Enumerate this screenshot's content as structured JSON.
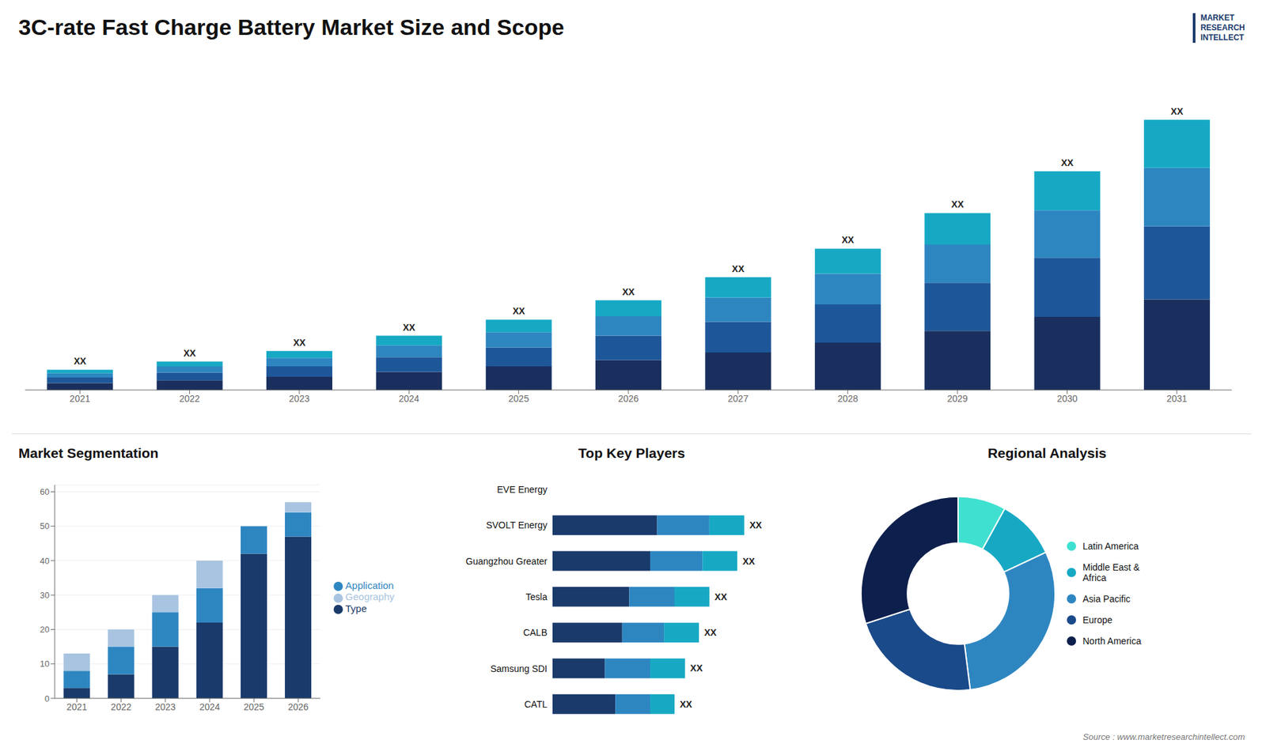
{
  "chart_data": [
    {
      "type": "bar",
      "title": "3C-rate Fast Charge Battery Market Size and Scope",
      "categories": [
        "2021",
        "2022",
        "2023",
        "2024",
        "2025",
        "2026",
        "2027",
        "2028",
        "2029",
        "2030",
        "2031"
      ],
      "stacked": true,
      "data_labels": true,
      "grid": false,
      "tick_labels": "x",
      "ylim": [
        0,
        45.784
      ],
      "yticks": [],
      "series": [
        {
          "color": "#1a2f5e",
          "values": [
            1.0,
            1.4,
            1.9,
            2.6,
            3.4,
            4.3,
            5.4,
            6.8,
            8.5,
            10.5,
            13.0
          ]
        },
        {
          "color": "#1e5799",
          "values": [
            0.8,
            1.1,
            1.5,
            2.1,
            2.7,
            3.5,
            4.4,
            5.5,
            6.9,
            8.5,
            10.5
          ]
        },
        {
          "color": "#2e86c1",
          "values": [
            0.6,
            0.9,
            1.2,
            1.7,
            2.2,
            2.8,
            3.5,
            4.4,
            5.5,
            6.8,
            8.4
          ]
        },
        {
          "color": "#17a9c4",
          "values": [
            0.5,
            0.7,
            1.0,
            1.4,
            1.8,
            2.3,
            2.9,
            3.6,
            4.5,
            5.6,
            6.9
          ],
          "value_labels": [
            "XX",
            "XX",
            "XX",
            "XX",
            "XX",
            "XX",
            "XX",
            "XX",
            "XX",
            "XX",
            "XX"
          ]
        }
      ],
      "annotations": [
        "MARKET",
        "RESEARCH",
        "INTELLECT"
      ]
    },
    {
      "type": "bar",
      "title": "Market Segmentation",
      "categories": [
        "2021",
        "2022",
        "2023",
        "2024",
        "2025",
        "2026"
      ],
      "stacked": true,
      "grid": true,
      "legend": "right",
      "ylim": [
        0,
        62
      ],
      "yticks": [
        0,
        10,
        20,
        30,
        40,
        50,
        60
      ],
      "series": [
        {
          "name": "Type",
          "color": "#1a3a6b",
          "values": [
            3,
            7,
            15,
            22,
            42,
            47
          ]
        },
        {
          "name": "Application",
          "color": "#2e86c1",
          "values": [
            5,
            8,
            10,
            10,
            8,
            7
          ]
        },
        {
          "name": "Geography",
          "color": "#a8c4e0",
          "values": [
            5,
            5,
            5,
            8,
            0,
            3
          ]
        }
      ]
    },
    {
      "type": "bar",
      "title": "Top Key Players",
      "orientation": "horizontal",
      "categories": [
        "EVE Energy",
        "SVOLT Energy",
        "Guangzhou Greater",
        "Tesla",
        "CALB",
        "Samsung SDI",
        "CATL"
      ],
      "stacked": true,
      "data_labels": true,
      "grid": false,
      "tick_labels": "y",
      "xlim": [
        0,
        70
      ],
      "xticks": [],
      "series": [
        {
          "color": "#1a3a6b",
          "values": [
            0,
            30,
            28,
            22,
            20,
            15,
            18
          ]
        },
        {
          "color": "#2e86c1",
          "values": [
            0,
            15,
            15,
            13,
            12,
            13,
            10
          ]
        },
        {
          "color": "#17a9c4",
          "values": [
            0,
            10,
            10,
            10,
            10,
            10,
            7
          ],
          "value_labels": [
            null,
            "XX",
            "XX",
            "XX",
            "XX",
            "XX",
            "XX"
          ]
        }
      ]
    },
    {
      "type": "donut",
      "title": "Regional Analysis",
      "legend": "right",
      "categories": [
        "Latin America",
        "Middle East &\nAfrica",
        "Asia Pacific",
        "Europe",
        "North America"
      ],
      "values": [
        8,
        10,
        30,
        22,
        30
      ],
      "colors": [
        "#40e0d0",
        "#17a9c4",
        "#2e86c1",
        "#1a4a8a",
        "#0d1f4c"
      ],
      "annotations": [
        "Source : www.marketresearchintellect.com"
      ]
    }
  ]
}
